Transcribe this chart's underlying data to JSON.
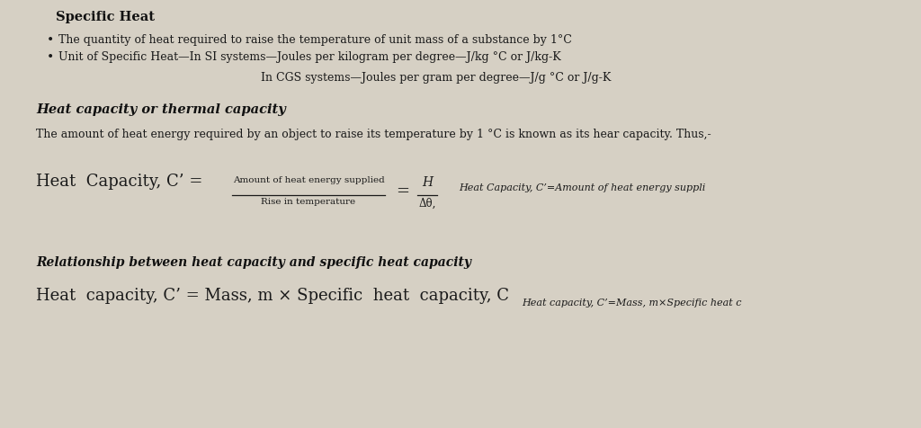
{
  "background_color": "#d6d0c4",
  "title": "Specific Heat",
  "bullet1": "The quantity of heat required to raise the temperature of unit mass of a substance by 1°C",
  "bullet2": "Unit of Specific Heat—In SI systems—Joules per kilogram per degree—J/kg °C or J/kg-K",
  "cgs_line": "In CGS systems—Joules per gram per degree—J/g °C or J/g-K",
  "heat_cap_heading": "Heat capacity or thermal capacity",
  "heat_cap_body": "The amount of heat energy required by an object to raise its temperature by 1 °C is known as its hear capacity. Thus,-",
  "formula_label": "Heat  Capacity, C’ =",
  "formula_numerator": "Amount of heat energy supplied",
  "formula_denominator": "Rise in temperature",
  "formula_equals": "=",
  "formula_H": "H",
  "formula_delta": "Δθ,",
  "formula_note": "Heat Capacity, C’=Amount of heat energy suppli",
  "rel_heading": "Relationship between heat capacity and specific heat capacity",
  "rel_formula": "Heat  capacity, C’ = Mass, m × Specific  heat  capacity, C",
  "rel_note": "Heat capacity, C’=Mass, m×Specific heat c",
  "text_color": "#1a1a1a",
  "heading_color": "#111111",
  "figwidth": 10.24,
  "figheight": 4.77,
  "dpi": 100
}
